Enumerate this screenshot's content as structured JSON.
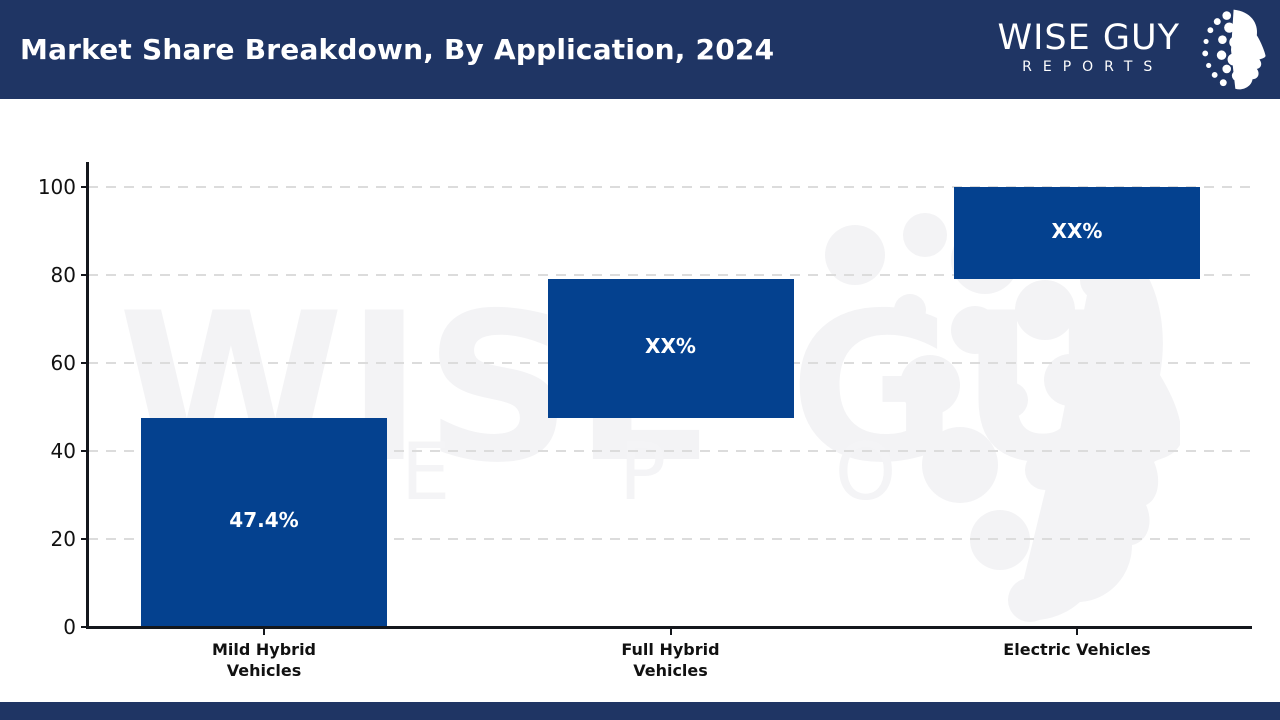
{
  "header": {
    "title": "Market Share Breakdown, By Application, 2024",
    "bg_color": "#1f3564",
    "logo": {
      "line1": "WISE GUY",
      "line2": "REPORTS"
    }
  },
  "watermark": {
    "line1": "WISE GU",
    "line2": "R E P O R T S"
  },
  "chart_data": {
    "type": "bar",
    "subtype": "waterfall",
    "title": "Market Share Breakdown, By Application, 2024",
    "xlabel": "",
    "ylabel": "",
    "ylim": [
      0,
      105
    ],
    "y_ticks": [
      0,
      20,
      40,
      60,
      80,
      100
    ],
    "grid": "horizontal-dashed",
    "legend": "none",
    "bar_color": "#04418f",
    "categories": [
      "Mild Hybrid Vehicles",
      "Full Hybrid Vehicles",
      "Electric Vehicles"
    ],
    "category_lines": [
      [
        "Mild Hybrid",
        "Vehicles"
      ],
      [
        "Full Hybrid",
        "Vehicles"
      ],
      [
        "Electric Vehicles"
      ]
    ],
    "segments": [
      {
        "category": "Mild Hybrid Vehicles",
        "start": 0,
        "end": 47.4,
        "value_label": "47.4%"
      },
      {
        "category": "Full Hybrid Vehicles",
        "start": 47.4,
        "end": 79,
        "value_label": "XX%"
      },
      {
        "category": "Electric Vehicles",
        "start": 79,
        "end": 100,
        "value_label": "XX%"
      }
    ]
  },
  "footer": {
    "bg_color": "#1f3564"
  }
}
